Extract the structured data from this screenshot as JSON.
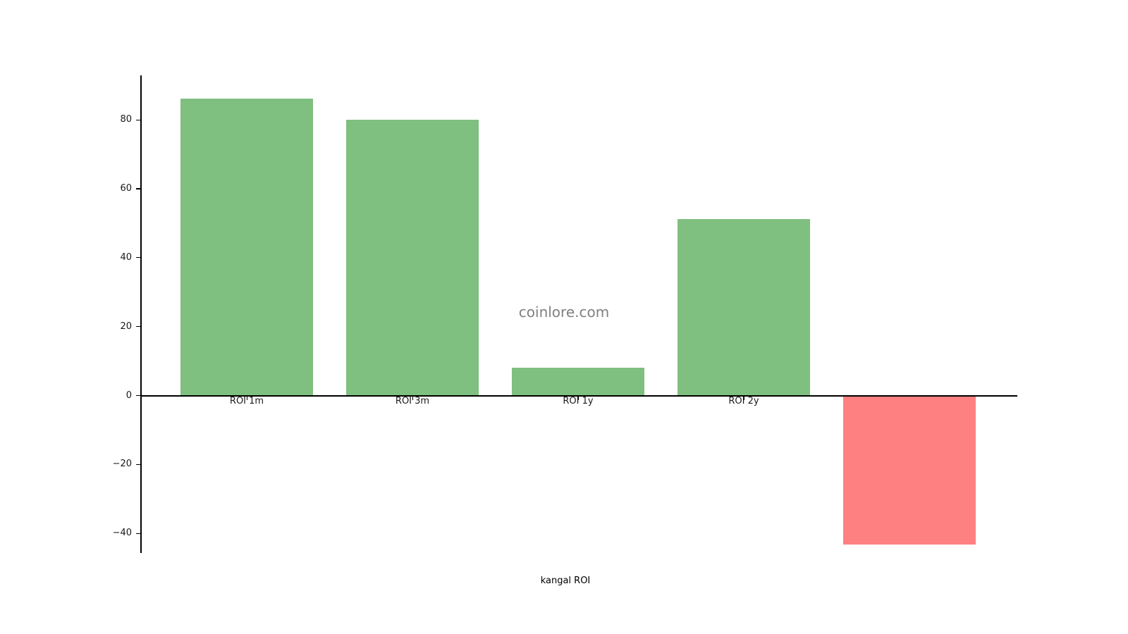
{
  "page": {
    "background": "#ffffff"
  },
  "watermark": {
    "text": "coinlore.com",
    "color": "#808080"
  },
  "chart_data": {
    "type": "bar",
    "title": "",
    "xlabel": "kangal ROI",
    "ylabel": "",
    "categories": [
      "ROI 1m",
      "ROI 3m",
      "ROI 1y",
      "ROI 2y",
      ""
    ],
    "values": [
      86,
      80,
      8,
      51,
      -43
    ],
    "series": [
      {
        "name": "kangal ROI",
        "values": [
          86,
          80,
          8,
          51,
          -43
        ]
      }
    ],
    "bar_colors": {
      "positive": "#7fbf7f",
      "negative": "#ff8080"
    },
    "y_ticks": [
      80,
      60,
      40,
      20,
      0,
      -20,
      -40
    ],
    "ylim": [
      -50,
      93
    ],
    "grid": false,
    "legend": null,
    "axis_color": "#000000",
    "tick_label_color": "#1a1a1a"
  }
}
